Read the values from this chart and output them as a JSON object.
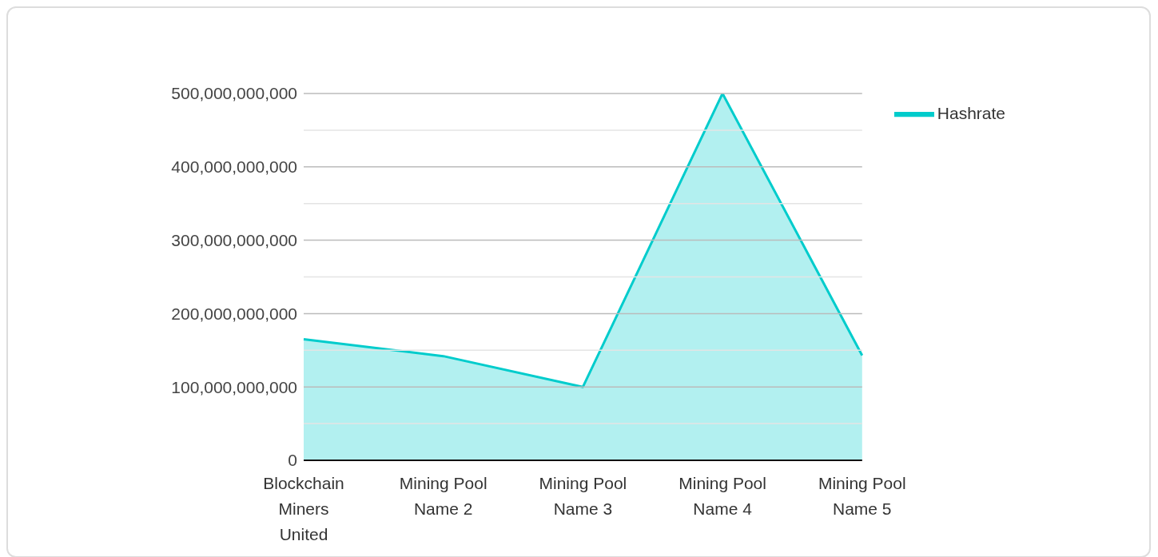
{
  "chart_data": {
    "type": "area",
    "categories": [
      "Blockchain Miners United",
      "Mining Pool Name 2",
      "Mining Pool Name 3",
      "Mining Pool Name 4",
      "Mining Pool Name 5"
    ],
    "series": [
      {
        "name": "Hashrate",
        "color": "#00cccc",
        "values": [
          165000000000,
          142000000000,
          100000000000,
          500000000000,
          143000000000
        ]
      }
    ],
    "ylim": [
      0,
      500000000000
    ],
    "yticks": [
      0,
      {
        "value": 50000000000,
        "label": null
      },
      {
        "value": 100000000000,
        "label": "100,000,000,000"
      },
      {
        "value": 150000000000,
        "label": null
      },
      {
        "value": 200000000000,
        "label": "200,000,000,000"
      },
      {
        "value": 250000000000,
        "label": null
      },
      {
        "value": 300000000000,
        "label": "300,000,000,000"
      },
      {
        "value": 350000000000,
        "label": null
      },
      {
        "value": 400000000000,
        "label": "400,000,000,000"
      },
      {
        "value": 450000000000,
        "label": null
      },
      {
        "value": 500000000000,
        "label": "500,000,000,000"
      }
    ],
    "grid": "y",
    "legend": "top right"
  }
}
